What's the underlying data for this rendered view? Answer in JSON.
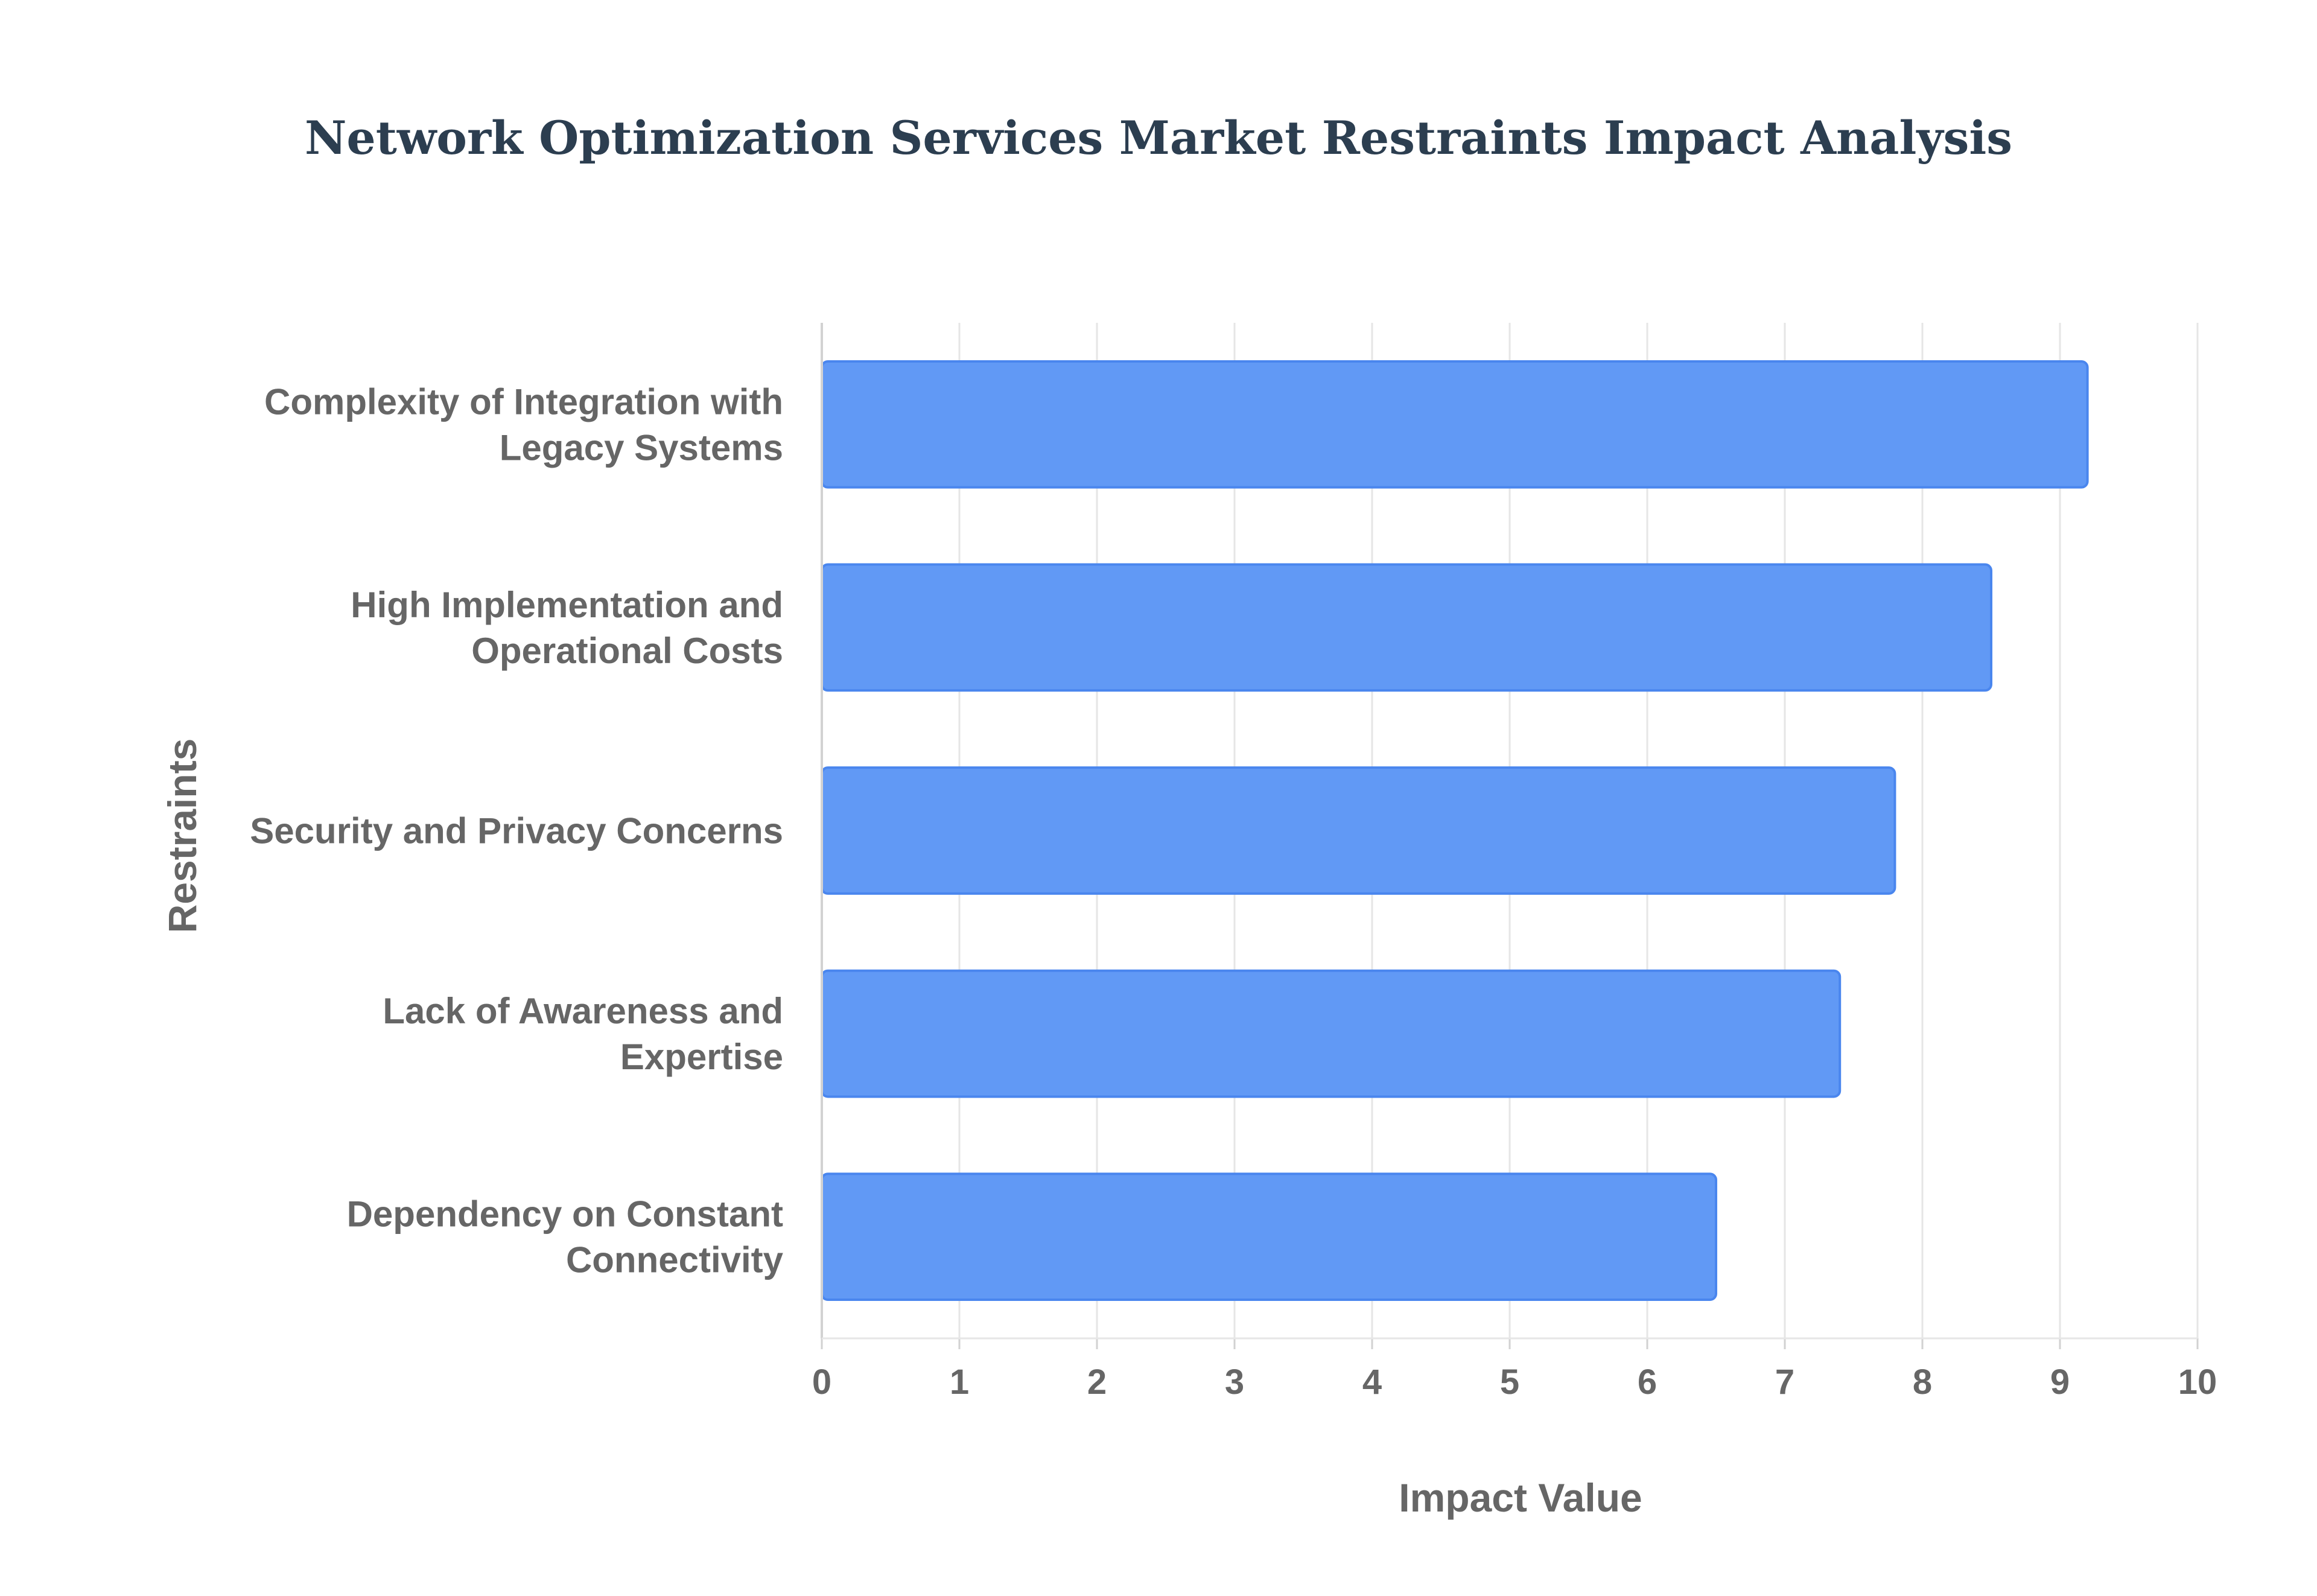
{
  "chart_data": {
    "type": "bar",
    "orientation": "horizontal",
    "title": "Network Optimization Services Market Restraints Impact Analysis",
    "xlabel": "Impact Value",
    "ylabel": "Restraints",
    "categories": [
      [
        "Complexity of Integration with",
        "Legacy Systems"
      ],
      [
        "High Implementation and",
        "Operational Costs"
      ],
      [
        "Security and Privacy Concerns"
      ],
      [
        "Lack of Awareness and",
        "Expertise"
      ],
      [
        "Dependency on Constant",
        "Connectivity"
      ]
    ],
    "values": [
      9.2,
      8.5,
      7.8,
      7.4,
      6.5
    ],
    "xlim": [
      0,
      10
    ],
    "xticks": [
      "0",
      "1",
      "2",
      "3",
      "4",
      "5",
      "6",
      "7",
      "8",
      "9",
      "10"
    ],
    "grid": true,
    "legend": "none"
  },
  "colors": {
    "bar_fill": "#6199f5",
    "bar_stroke": "#4a86ee",
    "title": "#2c3e50",
    "labels": "#666666",
    "grid": "#e6e6e6",
    "axis": "#d2d2d2"
  }
}
